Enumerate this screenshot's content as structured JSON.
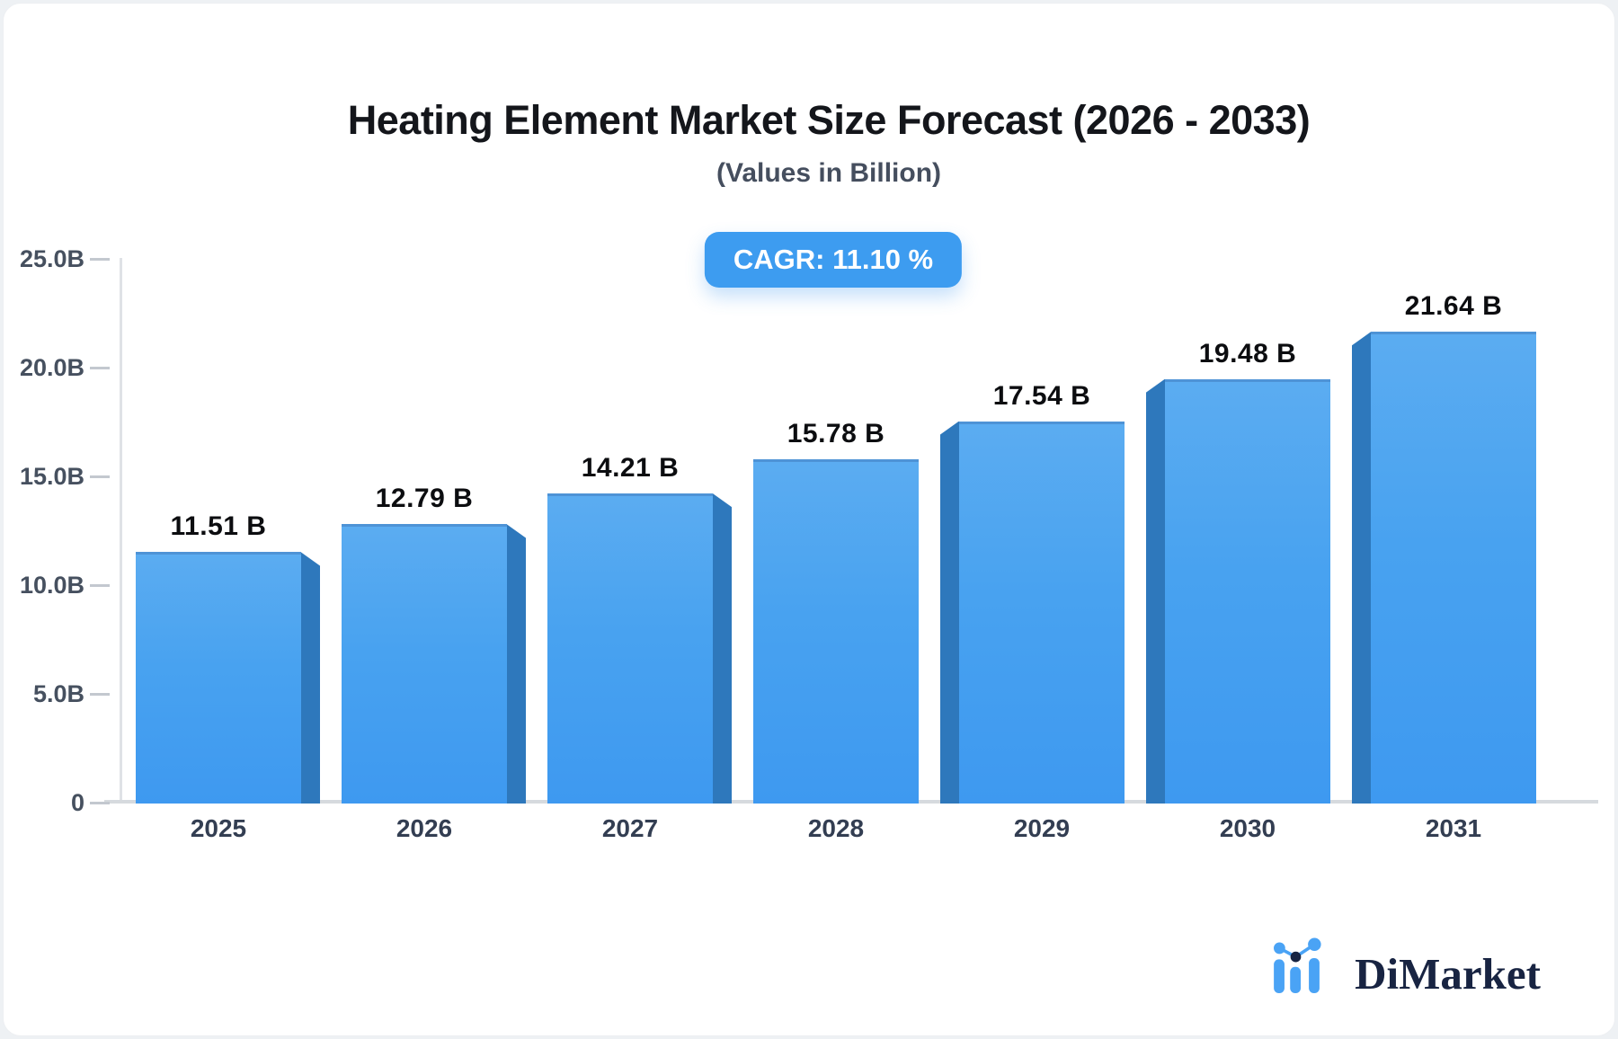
{
  "page": {
    "title": "Heating Element Market Size Forecast (2026 - 2033)",
    "subtitle": "(Values in Billion)",
    "cagr_badge": "CAGR: 11.10 %"
  },
  "brand": {
    "name": "DiMarket",
    "icon": "mini-bar-chart-logo-icon"
  },
  "colors": {
    "bar_top": "#5BACF1",
    "bar_bottom": "#3E99F0",
    "bar_top_edge": "#4E93D6",
    "bar_side_3d": "#2E78BC",
    "badge_bg": "#3D9CF0",
    "badge_text": "#FFFFFF",
    "axis_line": "#DFE2E6",
    "baseline": "#D6DADE",
    "tick_text": "#46505F",
    "year_text": "#333E52",
    "value_text": "#0C0D10",
    "title_text": "#14161B",
    "subtitle_text": "#454E5E",
    "logo_navy": "#182442",
    "logo_blue": "#4AA3F5"
  },
  "chart_data": {
    "type": "bar",
    "title": "Heating Element Market Size Forecast (2026 - 2033)",
    "subtitle": "(Values in Billion)",
    "categories": [
      "2025",
      "2026",
      "2027",
      "2028",
      "2029",
      "2030",
      "2031"
    ],
    "values": [
      11.51,
      12.79,
      14.21,
      15.78,
      17.54,
      19.48,
      21.64
    ],
    "bar_labels": [
      "11.51 B",
      "12.79 B",
      "14.21 B",
      "15.78 B",
      "17.54 B",
      "19.48 B",
      "21.64 B"
    ],
    "unit": "Billion",
    "ylim": [
      0,
      25
    ],
    "y_ticks": [
      {
        "value": 25,
        "label": "25.0B"
      },
      {
        "value": 20,
        "label": "20.0B"
      },
      {
        "value": 15,
        "label": "15.0B"
      },
      {
        "value": 10,
        "label": "10.0B"
      },
      {
        "value": 5,
        "label": "5.0B"
      },
      {
        "value": 0,
        "label": "0"
      }
    ],
    "grid": false,
    "legend": "none",
    "annotations": [
      "CAGR: 11.10 %"
    ]
  }
}
